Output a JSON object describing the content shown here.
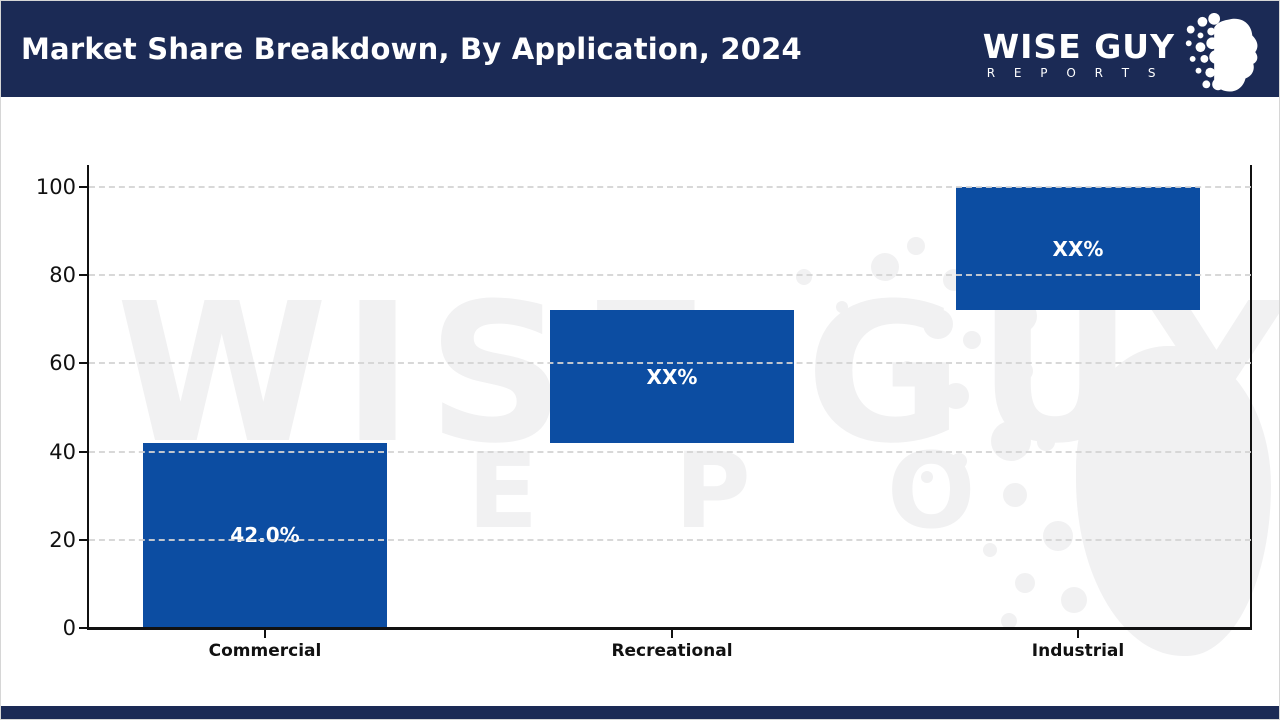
{
  "header": {
    "title": "Market Share Breakdown, By Application, 2024"
  },
  "logo": {
    "line1": "WISE GUY",
    "line2": "R E P O R T S"
  },
  "watermark": {
    "line1": "WISE GUY",
    "line2": "R E P O R T S"
  },
  "colors": {
    "header_bg": "#1b2a55",
    "footer_bg": "#1b2a55",
    "bar": "#0c4da2",
    "bar_label": "#ffffff",
    "grid": "#d4d4d4",
    "axis": "#111111",
    "tick_text": "#111111",
    "watermark": "#f1f1f2",
    "title_text": "#ffffff"
  },
  "chart_data": {
    "type": "bar",
    "subtype": "waterfall-floating-bars",
    "title": "Market Share Breakdown, By Application, 2024",
    "categories": [
      "Commercial",
      "Recreational",
      "Industrial"
    ],
    "series": [
      {
        "name": "Market share (%)",
        "segments": [
          {
            "category": "Commercial",
            "start": 0,
            "end": 42,
            "label": "42.0%"
          },
          {
            "category": "Recreational",
            "start": 42,
            "end": 72,
            "label": "XX%"
          },
          {
            "category": "Industrial",
            "start": 72,
            "end": 100,
            "label": "XX%"
          }
        ]
      }
    ],
    "xlabel": "",
    "ylabel": "",
    "yticks": [
      0,
      20,
      40,
      60,
      80,
      100
    ],
    "ylim": [
      0,
      105
    ],
    "grid": "horizontal-dashed",
    "legend": "none"
  }
}
